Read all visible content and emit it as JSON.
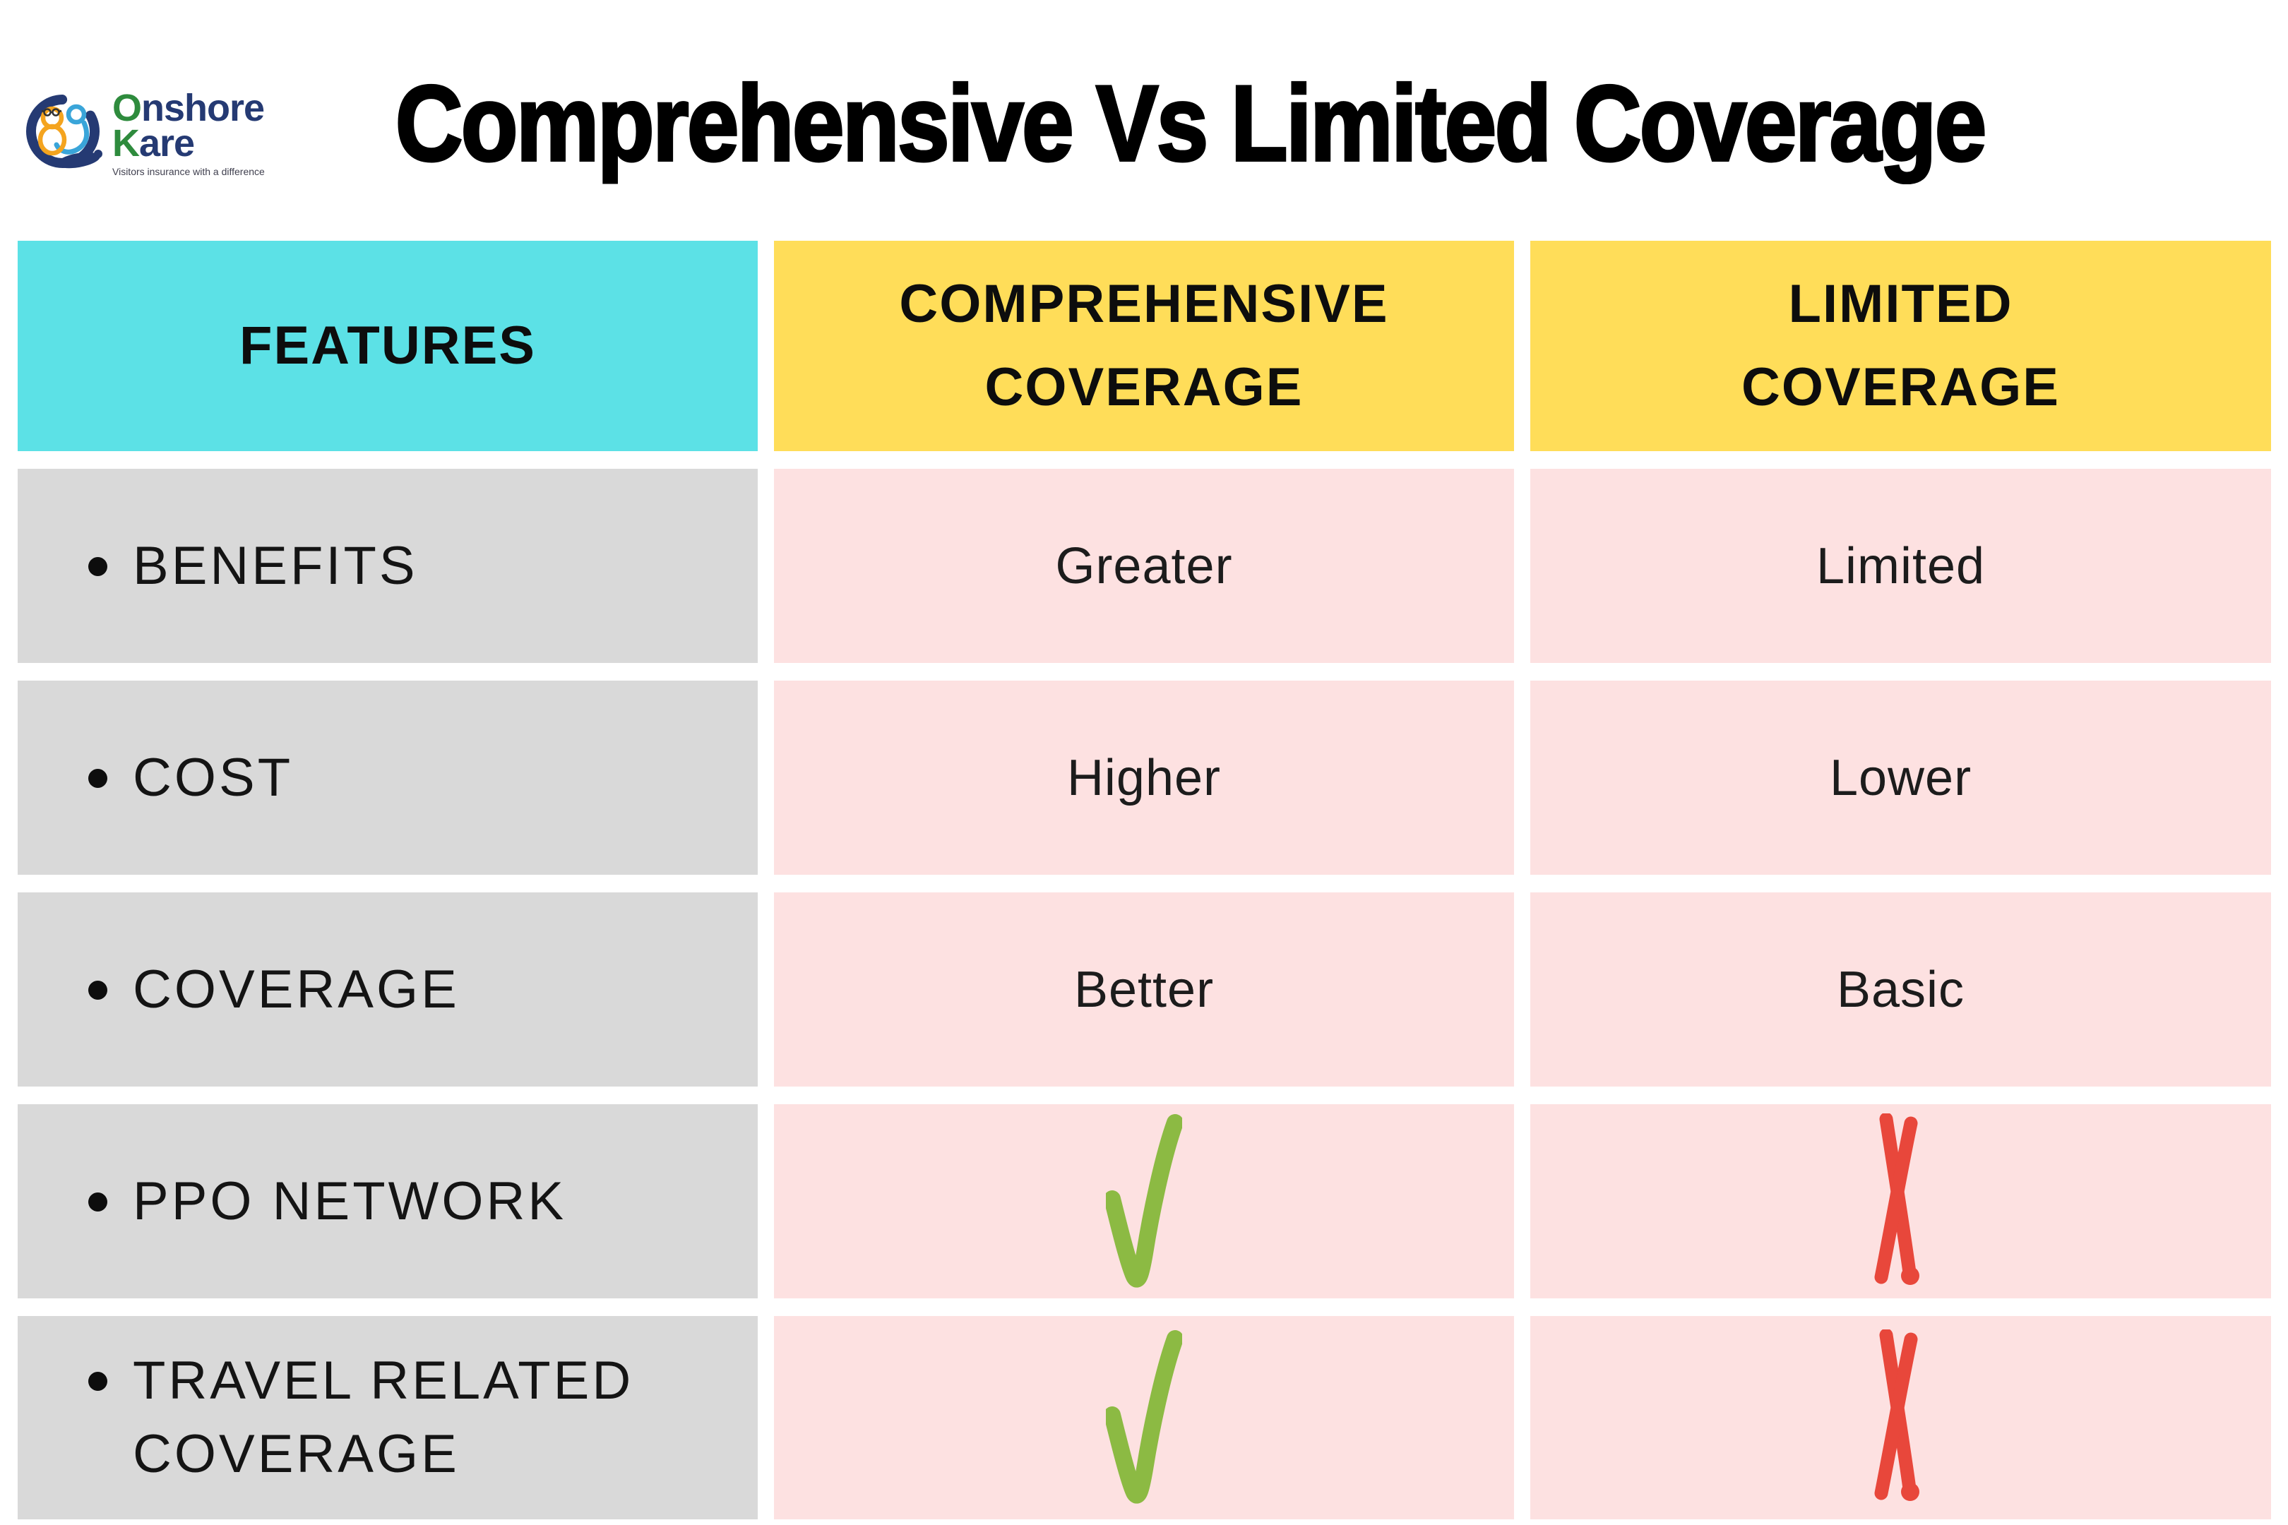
{
  "logo": {
    "word1_initial": "O",
    "word1_rest": "nshore",
    "word2_initial": "K",
    "word2_rest": "are",
    "tagline": "Visitors insurance with a difference",
    "colors": {
      "green": "#2e8b3d",
      "navy": "#253a73",
      "blue": "#3aa5d9",
      "orange": "#f4a41f"
    }
  },
  "title": "Comprehensive Vs Limited Coverage",
  "table": {
    "columns": [
      {
        "key": "features",
        "label": "FEATURES",
        "header_bg": "#5ce1e6"
      },
      {
        "key": "comprehensive",
        "label": "COMPREHENSIVE\nCOVERAGE",
        "header_bg": "#ffdd59"
      },
      {
        "key": "limited",
        "label": "LIMITED\nCOVERAGE",
        "header_bg": "#ffdd59"
      }
    ],
    "rows": [
      {
        "feature": "BENEFITS",
        "comprehensive": {
          "type": "text",
          "value": "Greater"
        },
        "limited": {
          "type": "text",
          "value": "Limited"
        }
      },
      {
        "feature": "COST",
        "comprehensive": {
          "type": "text",
          "value": "Higher"
        },
        "limited": {
          "type": "text",
          "value": "Lower"
        }
      },
      {
        "feature": "COVERAGE",
        "comprehensive": {
          "type": "text",
          "value": "Better"
        },
        "limited": {
          "type": "text",
          "value": "Basic"
        }
      },
      {
        "feature": "PPO NETWORK",
        "comprehensive": {
          "type": "check"
        },
        "limited": {
          "type": "cross"
        }
      },
      {
        "feature": "TRAVEL RELATED\nCOVERAGE",
        "comprehensive": {
          "type": "check"
        },
        "limited": {
          "type": "cross"
        }
      }
    ],
    "icons": {
      "bullet": "dot",
      "check": "check-mark",
      "cross": "x-mark"
    },
    "colors": {
      "feature_bg": "#d9d9d9",
      "value_bg": "#fde1e1",
      "header_features_bg": "#5ce1e6",
      "header_coverage_bg": "#ffdd59",
      "check": "#8cba43",
      "cross": "#e8473b"
    }
  }
}
